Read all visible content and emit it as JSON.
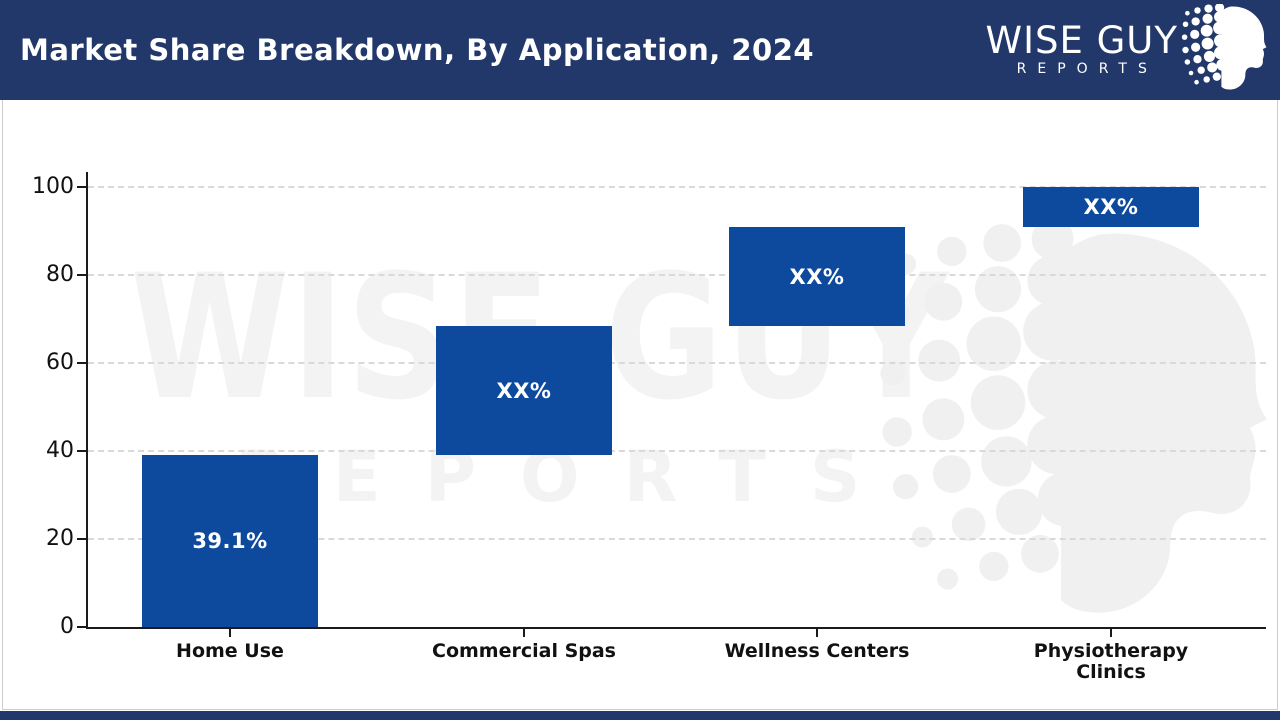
{
  "header": {
    "title": "Market Share Breakdown, By Application, 2024",
    "logo": {
      "line1": "WISE GUY",
      "line2": "REPORTS"
    }
  },
  "watermark": {
    "line1": "WISE GUY",
    "line2": "REPORTS"
  },
  "chart_data": {
    "type": "bar",
    "variant": "floating-waterfall-segments",
    "title": "Market Share Breakdown, By Application, 2024",
    "categories": [
      "Home Use",
      "Commercial Spas",
      "Wellness Centers",
      "Physiotherapy Clinics"
    ],
    "segments": [
      {
        "category": "Home Use",
        "start": 0,
        "end": 39.1,
        "label": "39.1%"
      },
      {
        "category": "Commercial Spas",
        "start": 39.1,
        "end": 68.3,
        "label": "XX%"
      },
      {
        "category": "Wellness Centers",
        "start": 68.3,
        "end": 90.9,
        "label": "XX%"
      },
      {
        "category": "Physiotherapy Clinics",
        "start": 90.9,
        "end": 100,
        "label": "XX%"
      }
    ],
    "yticks": [
      0,
      20,
      40,
      60,
      80,
      100
    ],
    "ylim": [
      0,
      103
    ],
    "xlabel": "",
    "ylabel": "",
    "grid": "dashed-horizontal",
    "legend": "none"
  },
  "colors": {
    "header_bg": "#22386a",
    "bar": "#0d4a9d",
    "bar_label": "#ffffff",
    "grid": "#d9d9d9",
    "axis": "#1a1a1a",
    "watermark": "#f2f2f2",
    "frame": "#cccccc"
  }
}
